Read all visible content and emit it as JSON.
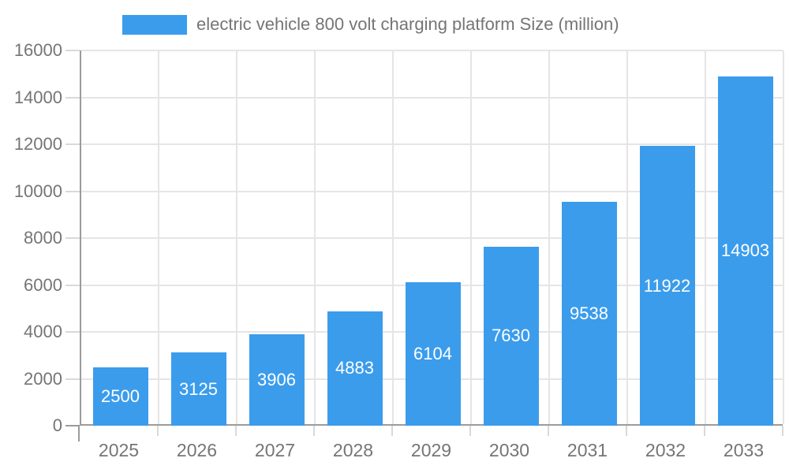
{
  "chart_data": {
    "type": "bar",
    "title": "electric vehicle 800 volt charging platform Size (million)",
    "categories": [
      "2025",
      "2026",
      "2027",
      "2028",
      "2029",
      "2030",
      "2031",
      "2032",
      "2033"
    ],
    "values": [
      2500,
      3125,
      3906,
      4883,
      6104,
      7630,
      9538,
      11922,
      14903
    ],
    "xlabel": "",
    "ylabel": "",
    "ylim": [
      0,
      16000
    ],
    "ytick_step": 2000,
    "ytick_labels": [
      "0",
      "2000",
      "4000",
      "6000",
      "8000",
      "10000",
      "12000",
      "14000",
      "16000"
    ],
    "grid": true,
    "legend_position": "top",
    "bar_color": "#3b9cec",
    "bar_label_color": "#ffffff",
    "axis_text_color": "#757575",
    "gridline_color": "#e5e5e5",
    "axis_line_color": "#9b9b9b"
  },
  "legend": {
    "label": "electric vehicle 800 volt charging platform Size (million)",
    "swatch_color": "#3b9cec"
  }
}
